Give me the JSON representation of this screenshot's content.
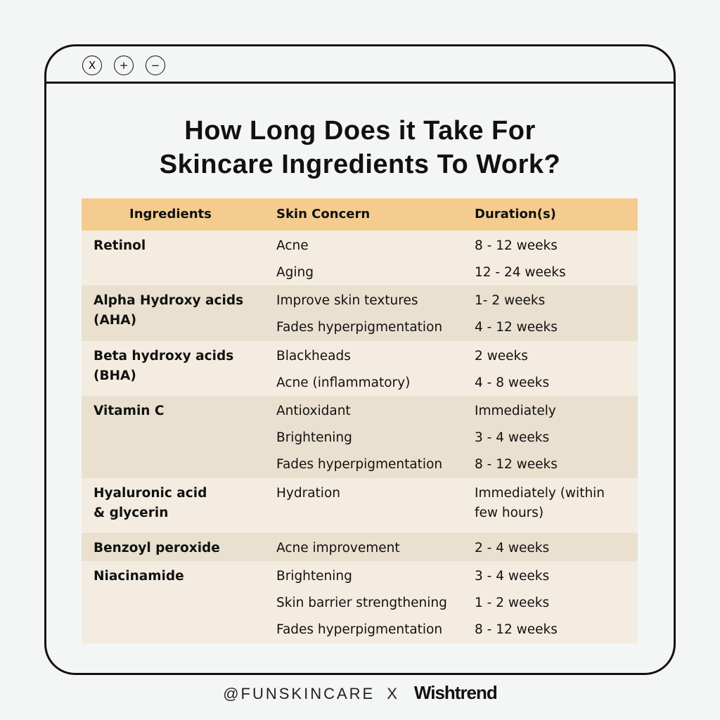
{
  "window_buttons": [
    "X",
    "+",
    "−"
  ],
  "title_line1": "How Long Does it Take For",
  "title_line2": "Skincare Ingredients To Work?",
  "colors": {
    "header": "#f4cc90",
    "row_light": "#f4ece0",
    "row_dark": "#e9e0cf"
  },
  "table": {
    "headers": [
      "Ingredients",
      "Skin Concern",
      "Duration(s)"
    ],
    "groups": [
      {
        "ingredient": "Retinol",
        "rows": [
          {
            "concern": "Acne",
            "duration": "8 - 12 weeks"
          },
          {
            "concern": "Aging",
            "duration": "12 - 24 weeks"
          }
        ]
      },
      {
        "ingredient": "Alpha Hydroxy acids (AHA)",
        "rows": [
          {
            "concern": "Improve skin textures",
            "duration": "1- 2 weeks"
          },
          {
            "concern": "Fades hyperpigmentation",
            "duration": "4 - 12 weeks"
          }
        ]
      },
      {
        "ingredient": "Beta hydroxy acids (BHA)",
        "rows": [
          {
            "concern": "Blackheads",
            "duration": "2 weeks"
          },
          {
            "concern": "Acne (inflammatory)",
            "duration": "4 - 8 weeks"
          }
        ]
      },
      {
        "ingredient": "Vitamin C",
        "rows": [
          {
            "concern": "Antioxidant",
            "duration": "Immediately"
          },
          {
            "concern": "Brightening",
            "duration": "3 - 4 weeks"
          },
          {
            "concern": "Fades hyperpigmentation",
            "duration": "8 - 12 weeks"
          }
        ]
      },
      {
        "ingredient": "Hyaluronic acid & glycerin",
        "rows": [
          {
            "concern": "Hydration",
            "duration": "Immediately (within few hours)"
          }
        ]
      },
      {
        "ingredient": "Benzoyl peroxide",
        "rows": [
          {
            "concern": "Acne improvement",
            "duration": "2 - 4 weeks"
          }
        ]
      },
      {
        "ingredient": "Niacinamide",
        "rows": [
          {
            "concern": "Brightening",
            "duration": "3 - 4 weeks"
          },
          {
            "concern": "Skin barrier strengthening",
            "duration": "1 - 2 weeks"
          },
          {
            "concern": "Fades hyperpigmentation",
            "duration": "8 - 12 weeks"
          }
        ]
      }
    ]
  },
  "footer": {
    "handle": "@FUNSKINCARE",
    "separator": "X",
    "brand": "Wishtrend"
  }
}
